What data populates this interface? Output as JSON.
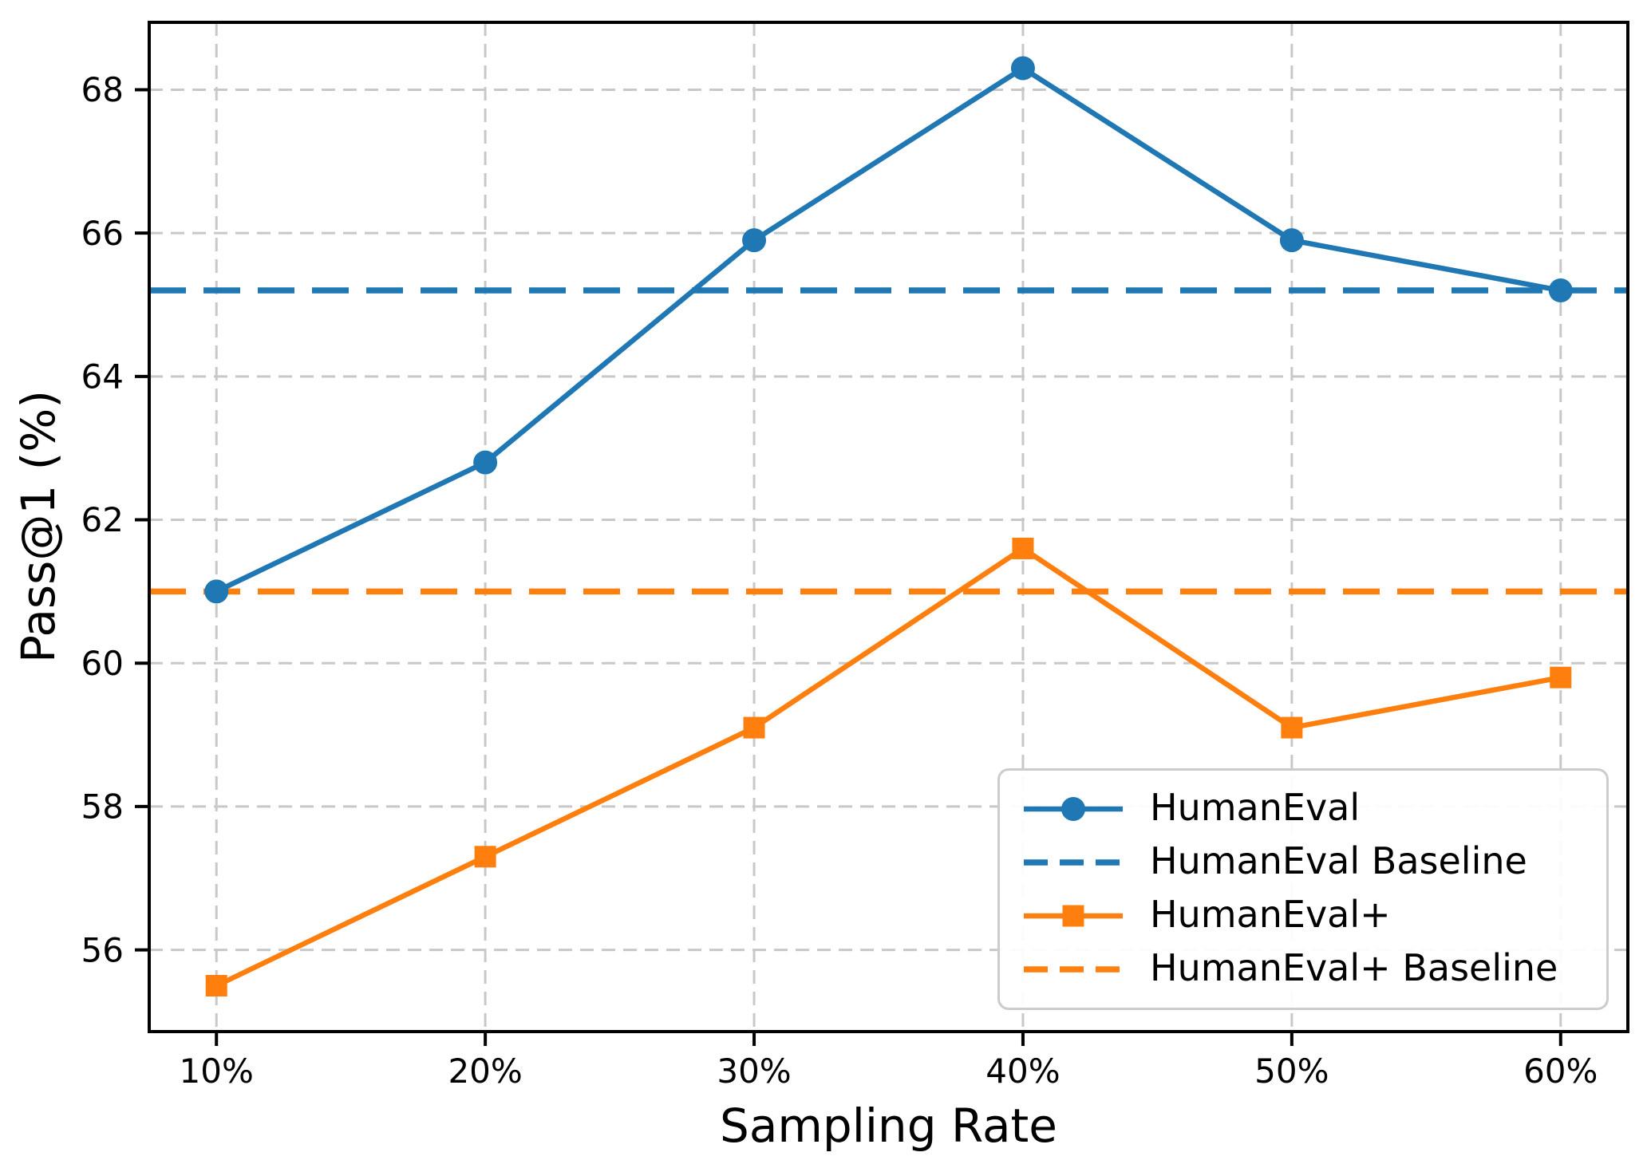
{
  "chart_data": {
    "type": "line",
    "title": "",
    "xlabel": "Sampling Rate",
    "ylabel": "Pass@1 (%)",
    "categories": [
      "10%",
      "20%",
      "30%",
      "40%",
      "50%",
      "60%"
    ],
    "yticks": [
      56,
      58,
      60,
      62,
      64,
      66,
      68
    ],
    "ylim": [
      54.86,
      68.94
    ],
    "grid": true,
    "legend_position": "lower right",
    "axis_color": "#000000",
    "grid_color": "#c8c8c8",
    "series": [
      {
        "name": "HumanEval",
        "type": "line",
        "marker": "circle",
        "color": "#1f77b4",
        "values": [
          61.0,
          62.8,
          65.9,
          68.3,
          65.9,
          65.2
        ]
      },
      {
        "name": "HumanEval Baseline",
        "type": "hline",
        "color": "#1f77b4",
        "value": 65.2
      },
      {
        "name": "HumanEval+",
        "type": "line",
        "marker": "square",
        "color": "#ff7f0e",
        "values": [
          55.5,
          57.3,
          59.1,
          61.6,
          59.1,
          59.8
        ]
      },
      {
        "name": "HumanEval+ Baseline",
        "type": "hline",
        "color": "#ff7f0e",
        "value": 61.0
      }
    ]
  }
}
